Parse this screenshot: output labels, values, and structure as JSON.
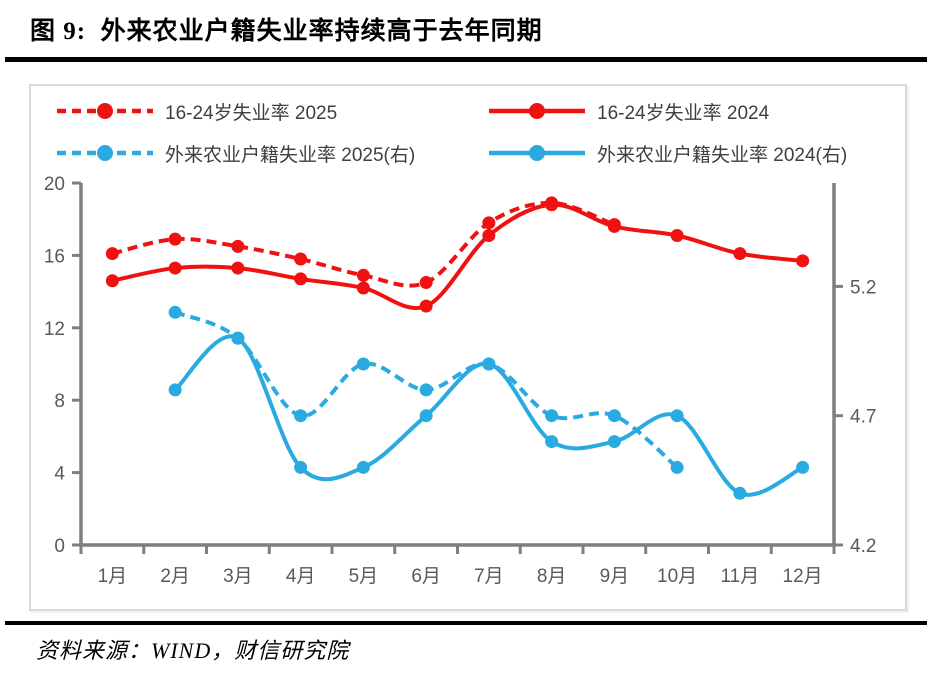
{
  "figure": {
    "title": "图 9:  外来农业户籍失业率持续高于去年同期",
    "source": "资料来源：WIND，财信研究院"
  },
  "chart_data": {
    "type": "line",
    "title": "外来农业户籍失业率持续高于去年同期",
    "categories": [
      "1月",
      "2月",
      "3月",
      "4月",
      "5月",
      "6月",
      "7月",
      "8月",
      "9月",
      "10月",
      "11月",
      "12月"
    ],
    "grid": false,
    "legend_position": "top",
    "axis_color": "#7f7f7f",
    "tick_label_color": "#595959",
    "left_axis": {
      "min": 0,
      "max": 20,
      "ticks": [
        "0",
        "4",
        "8",
        "12",
        "16",
        "20"
      ]
    },
    "right_axis": {
      "min": 4.2,
      "max": 5.6,
      "ticks": [
        "4.2",
        "4.7",
        "5.2"
      ]
    },
    "series": [
      {
        "name": "16-24岁失业率 2025",
        "axis": "left",
        "line": "dashed",
        "color": "#f01111",
        "values": [
          16.1,
          16.9,
          16.5,
          15.8,
          14.9,
          14.5,
          17.8,
          18.9,
          17.7,
          null,
          null,
          null
        ]
      },
      {
        "name": "16-24岁失业率 2024",
        "axis": "left",
        "line": "solid",
        "color": "#f01111",
        "values": [
          14.6,
          15.3,
          15.3,
          14.7,
          14.2,
          13.2,
          17.1,
          18.8,
          17.6,
          17.1,
          16.1,
          15.7
        ]
      },
      {
        "name": "外来农业户籍失业率 2025(右)",
        "axis": "right",
        "line": "dashed",
        "color": "#29abe2",
        "values": [
          null,
          5.1,
          5.0,
          4.7,
          4.9,
          4.8,
          4.9,
          4.7,
          4.7,
          4.5,
          null,
          null
        ]
      },
      {
        "name": "外来农业户籍失业率 2024(右)",
        "axis": "right",
        "line": "solid",
        "color": "#29abe2",
        "values": [
          null,
          4.8,
          5.0,
          4.5,
          4.5,
          4.7,
          4.9,
          4.6,
          4.6,
          4.7,
          4.4,
          4.5
        ]
      }
    ]
  }
}
